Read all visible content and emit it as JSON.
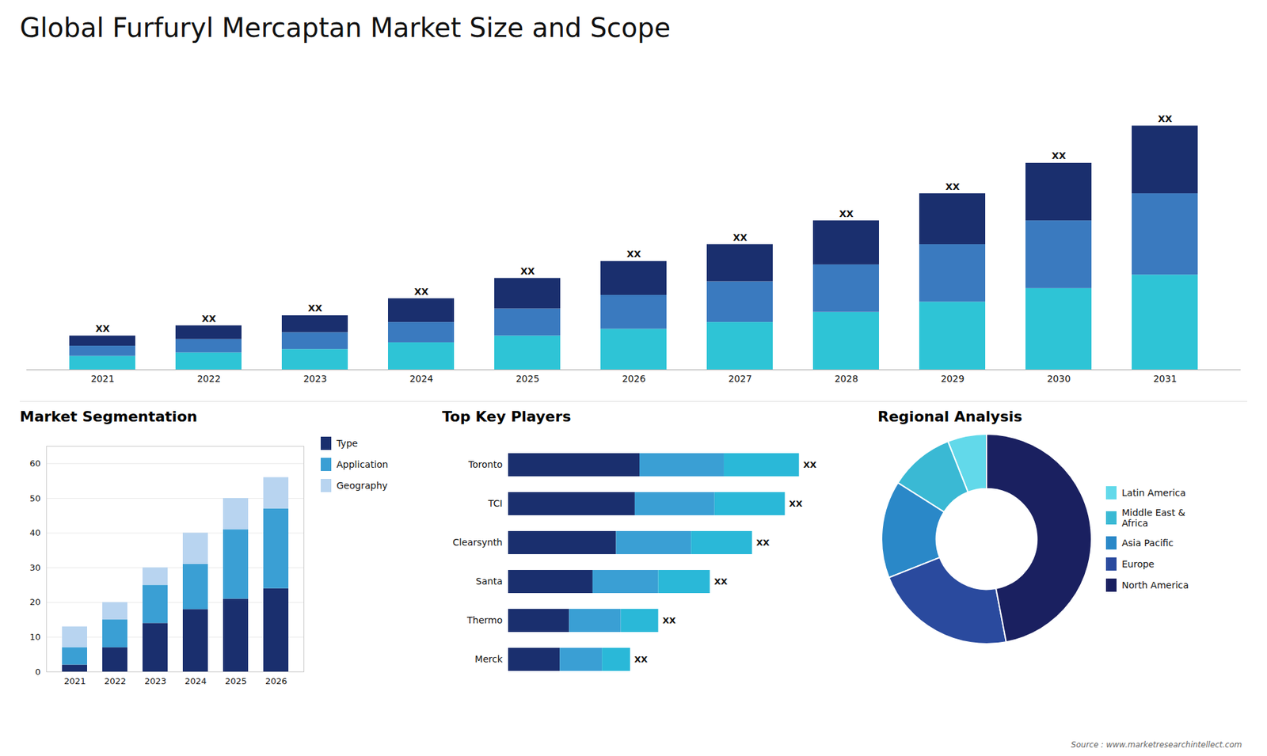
{
  "chart_data": [
    {
      "type": "bar",
      "stacked": true,
      "title": "Global Furfuryl Mercaptan Market Size and Scope",
      "categories": [
        "2021",
        "2022",
        "2023",
        "2024",
        "2025",
        "2026",
        "2027",
        "2028",
        "2029",
        "2030",
        "2031"
      ],
      "series": [
        {
          "color": "#2ec4d6",
          "values": [
            4,
            5,
            6,
            8,
            10,
            12,
            14,
            17,
            20,
            24,
            28
          ]
        },
        {
          "color": "#3a7abf",
          "values": [
            3,
            4,
            5,
            6,
            8,
            10,
            12,
            14,
            17,
            20,
            24
          ]
        },
        {
          "color": "#1a2f6e",
          "values": [
            3,
            4,
            5,
            7,
            9,
            10,
            11,
            13,
            15,
            17,
            20
          ]
        }
      ],
      "value_labels": [
        "XX",
        "XX",
        "XX",
        "XX",
        "XX",
        "XX",
        "XX",
        "XX",
        "XX",
        "XX",
        "XX"
      ],
      "ylim": [
        0,
        90
      ],
      "tick_labels": "x",
      "annotations": [
        "Source : www.marketresearchintellect.com"
      ]
    },
    {
      "type": "bar",
      "stacked": true,
      "title": "Market Segmentation",
      "categories": [
        "2021",
        "2022",
        "2023",
        "2024",
        "2025",
        "2026"
      ],
      "series": [
        {
          "name": "Type",
          "color": "#1a2f6e",
          "values": [
            2,
            7,
            14,
            18,
            21,
            24
          ]
        },
        {
          "name": "Application",
          "color": "#3a9fd4",
          "values": [
            5,
            8,
            11,
            13,
            20,
            23
          ]
        },
        {
          "name": "Geography",
          "color": "#b8d4f0",
          "values": [
            6,
            5,
            5,
            9,
            9,
            9
          ]
        }
      ],
      "ylim": [
        0,
        65
      ],
      "yticks": [
        0,
        10,
        20,
        30,
        40,
        50,
        60
      ],
      "grid": true,
      "legend": "right"
    },
    {
      "type": "bar",
      "stacked": true,
      "orientation": "horizontal",
      "title": "Top Key Players",
      "categories": [
        "Toronto",
        "TCI",
        "Clearsynth",
        "Santa",
        "Thermo",
        "Merck"
      ],
      "series": [
        {
          "color": "#1a2f6e",
          "values": [
            28,
            27,
            23,
            18,
            13,
            11
          ]
        },
        {
          "color": "#3a9fd4",
          "values": [
            18,
            17,
            16,
            14,
            11,
            9
          ]
        },
        {
          "color": "#2ab8d8",
          "values": [
            16,
            15,
            13,
            11,
            8,
            6
          ]
        }
      ],
      "value_labels": [
        "XX",
        "XX",
        "XX",
        "XX",
        "XX",
        "XX"
      ],
      "xlim": [
        0,
        73.16
      ],
      "tick_labels": "y"
    },
    {
      "type": "donut",
      "title": "Regional Analysis",
      "categories": [
        "Latin America",
        "Middle East &\nAfrica",
        "Asia Pacific",
        "Europe",
        "North America"
      ],
      "values": [
        6,
        10,
        15,
        22,
        47
      ],
      "colors": [
        "#62d9ea",
        "#3ab9d4",
        "#2a88c8",
        "#2a4a9e",
        "#1a2060"
      ],
      "legend": "right"
    }
  ]
}
